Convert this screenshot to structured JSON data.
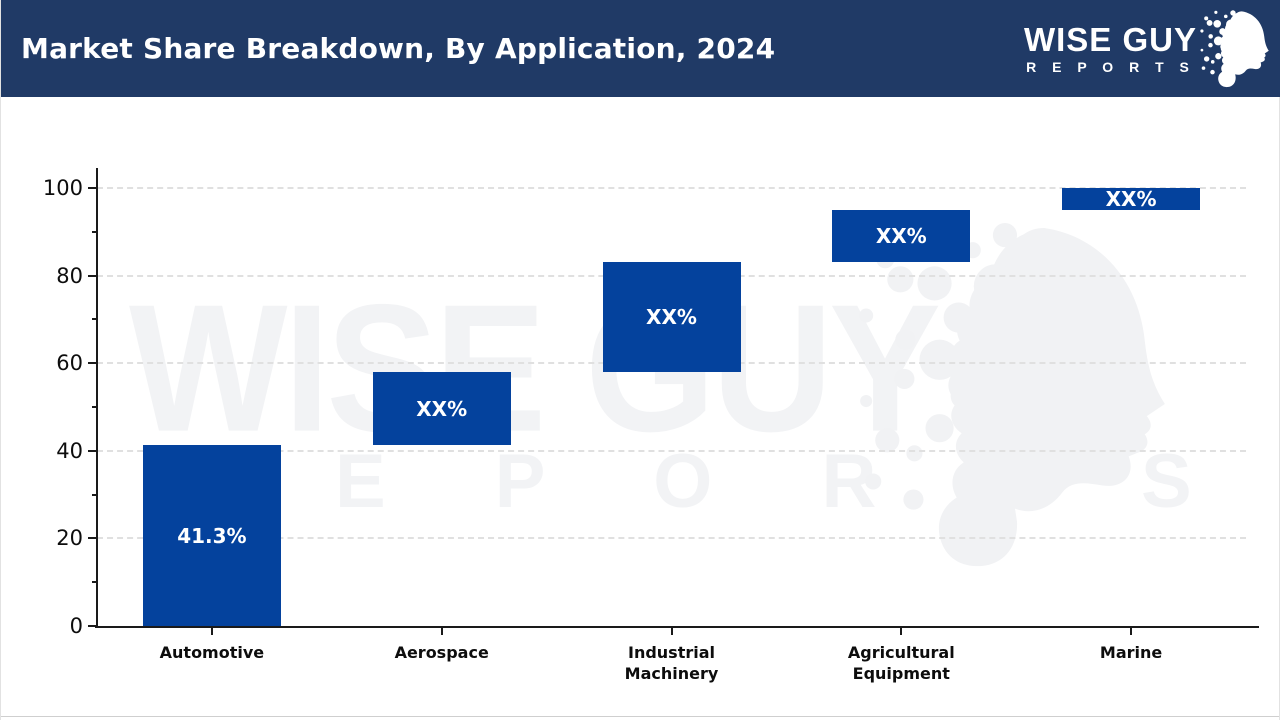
{
  "header": {
    "title": "Market Share Breakdown, By Application, 2024",
    "bg_color": "#203a66",
    "logo": {
      "name": "WISE GUY",
      "tagline": "R E P O R T S"
    }
  },
  "watermark": {
    "word": "WISE GUY",
    "tagline": "R E P O R T S"
  },
  "chart_data": {
    "type": "bar",
    "variant": "waterfall",
    "title": "Market Share Breakdown, By Application, 2024",
    "categories": [
      "Automotive",
      "Aerospace",
      "Industrial Machinery",
      "Agricultural Equipment",
      "Marine"
    ],
    "category_label_lines": [
      [
        "Automotive"
      ],
      [
        "Aerospace"
      ],
      [
        "Industrial",
        "Machinery"
      ],
      [
        "Agricultural",
        "Equipment"
      ],
      [
        "Marine"
      ]
    ],
    "segments": [
      {
        "category": "Automotive",
        "start": 0,
        "end": 41.3,
        "label": "41.3%"
      },
      {
        "category": "Aerospace",
        "start": 41.3,
        "end": 58,
        "label": "XX%"
      },
      {
        "category": "Industrial Machinery",
        "start": 58,
        "end": 83,
        "label": "XX%"
      },
      {
        "category": "Agricultural Equipment",
        "start": 83,
        "end": 95,
        "label": "XX%"
      },
      {
        "category": "Marine",
        "start": 95,
        "end": 100,
        "label": "XX%"
      }
    ],
    "xlabel": "",
    "ylabel": "",
    "ylim": [
      0,
      100
    ],
    "yticks": [
      0,
      20,
      40,
      60,
      80,
      100
    ],
    "yticks_minor": [
      10,
      30,
      50,
      70,
      90
    ],
    "grid": "horizontal-dashed",
    "legend": "none",
    "bar_color": "#04429d",
    "bar_label_color": "#ffffff",
    "axis_color": "#1a1a1a",
    "gridline_color": "#e0e0e0"
  }
}
